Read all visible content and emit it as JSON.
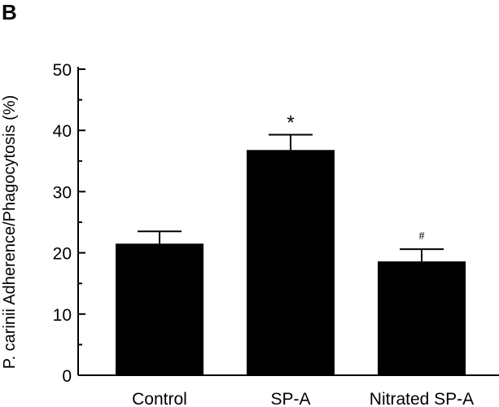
{
  "panel_label": "B",
  "chart_data": {
    "type": "bar",
    "categories": [
      "Control",
      "SP-A",
      "Nitrated SP-A"
    ],
    "values": [
      21.5,
      36.8,
      18.6
    ],
    "errors": [
      2.0,
      2.5,
      2.0
    ],
    "annotations": [
      "",
      "*",
      "#"
    ],
    "title": "",
    "xlabel": "",
    "ylabel": "P. carinii Adherence/Phagocytosis (%)",
    "ylim": [
      0,
      50
    ],
    "yticks": [
      0,
      10,
      20,
      30,
      40,
      50
    ],
    "yticklabels": [
      "0",
      "10",
      "20",
      "30",
      "40",
      "50"
    ],
    "grid": false,
    "bar_color": "#000000"
  }
}
